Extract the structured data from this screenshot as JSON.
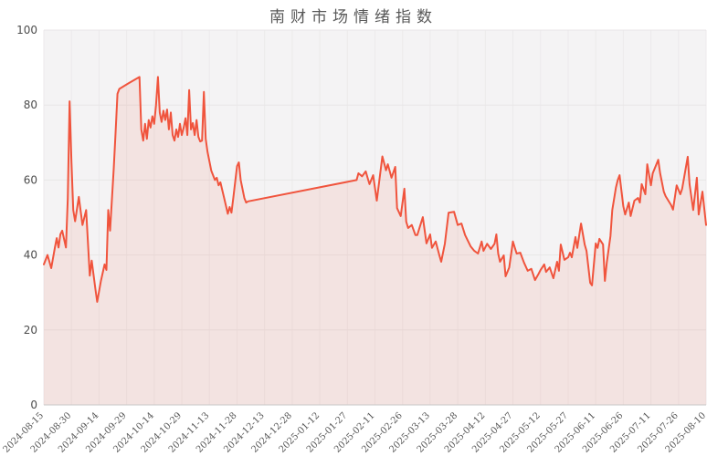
{
  "title": "南财市场情绪指数",
  "chart_data": {
    "type": "area",
    "title": "南财市场情绪指数",
    "xlabel": "",
    "ylabel": "",
    "ylim": [
      0,
      100
    ],
    "y_ticks": [
      0,
      20,
      40,
      60,
      80,
      100
    ],
    "x_range_days": [
      0,
      360
    ],
    "x_tick_step_days": 15,
    "x_tick_labels": [
      "2024-08-15",
      "2024-08-30",
      "2024-09-14",
      "2024-09-29",
      "2024-10-14",
      "2024-10-29",
      "2024-11-13",
      "2024-11-28",
      "2024-12-13",
      "2024-12-28",
      "2025-01-12",
      "2025-01-27",
      "2025-02-11",
      "2025-02-26",
      "2025-03-13",
      "2025-03-28",
      "2025-04-12",
      "2025-04-27",
      "2025-05-12",
      "2025-05-27",
      "2025-06-11",
      "2025-06-26",
      "2025-07-11",
      "2025-07-26",
      "2025-08-10"
    ],
    "grid": true,
    "legend": null,
    "colors": {
      "line": "#f0543d",
      "area_fill": "rgba(240,84,61,0.10)",
      "plot_bg": "#f4f3f4",
      "grid_h": "#e8e6e7",
      "grid_v": "#eceaeb",
      "axis_line": "#c9c9c9",
      "title_text": "#595959",
      "tick_text": "#555555"
    },
    "series": [
      {
        "name": "南财市场情绪指数",
        "x_unit": "days since 2024-08-15",
        "points": [
          [
            0,
            37.5
          ],
          [
            2,
            40
          ],
          [
            4,
            36.5
          ],
          [
            6,
            42
          ],
          [
            7,
            44.5
          ],
          [
            8,
            42
          ],
          [
            9,
            45.5
          ],
          [
            10,
            46.5
          ],
          [
            12,
            42
          ],
          [
            13,
            55
          ],
          [
            14,
            81
          ],
          [
            15,
            65
          ],
          [
            16,
            52
          ],
          [
            17,
            49
          ],
          [
            19,
            55.5
          ],
          [
            21,
            48
          ],
          [
            23,
            52
          ],
          [
            25,
            34.5
          ],
          [
            26,
            38.5
          ],
          [
            28,
            31
          ],
          [
            29,
            27.5
          ],
          [
            31,
            33
          ],
          [
            33,
            37.5
          ],
          [
            34,
            36
          ],
          [
            35,
            52
          ],
          [
            36,
            46.5
          ],
          [
            38,
            63
          ],
          [
            39,
            72.5
          ],
          [
            40,
            83
          ],
          [
            41,
            84.3
          ],
          [
            46,
            85.8
          ],
          [
            52,
            87.5
          ],
          [
            53,
            73.5
          ],
          [
            54,
            70.5
          ],
          [
            55,
            75
          ],
          [
            56,
            71
          ],
          [
            57,
            76
          ],
          [
            58,
            74
          ],
          [
            59,
            77
          ],
          [
            60,
            75
          ],
          [
            61,
            80
          ],
          [
            62,
            87.5
          ],
          [
            63,
            78
          ],
          [
            64,
            75.5
          ],
          [
            65,
            78.5
          ],
          [
            66,
            76
          ],
          [
            67,
            78.8
          ],
          [
            68,
            73.5
          ],
          [
            69,
            78
          ],
          [
            70,
            72
          ],
          [
            71,
            70.5
          ],
          [
            72,
            73.5
          ],
          [
            73,
            71.5
          ],
          [
            74,
            75
          ],
          [
            75,
            72
          ],
          [
            76,
            74
          ],
          [
            77,
            76.5
          ],
          [
            78,
            72
          ],
          [
            79,
            84
          ],
          [
            80,
            73.5
          ],
          [
            81,
            75.2
          ],
          [
            82,
            72
          ],
          [
            83,
            76
          ],
          [
            84,
            71.5
          ],
          [
            85,
            70.3
          ],
          [
            86,
            70.5
          ],
          [
            87,
            83.5
          ],
          [
            88,
            71
          ],
          [
            89,
            67.5
          ],
          [
            91,
            62.5
          ],
          [
            93,
            60
          ],
          [
            94,
            60.6
          ],
          [
            95,
            58.6
          ],
          [
            96,
            59.4
          ],
          [
            98,
            55.2
          ],
          [
            100,
            51
          ],
          [
            101,
            52.8
          ],
          [
            102,
            51.3
          ],
          [
            103,
            55.2
          ],
          [
            105,
            63.7
          ],
          [
            106,
            64.7
          ],
          [
            107,
            60
          ],
          [
            109,
            55.2
          ],
          [
            110,
            54
          ],
          [
            111,
            54.3
          ],
          [
            170,
            60
          ],
          [
            171,
            61.8
          ],
          [
            173,
            61
          ],
          [
            175,
            62.3
          ],
          [
            176,
            60.6
          ],
          [
            177,
            58.9
          ],
          [
            179,
            61.3
          ],
          [
            181,
            54.5
          ],
          [
            184,
            66.3
          ],
          [
            186,
            62.6
          ],
          [
            187,
            64.2
          ],
          [
            189,
            60.6
          ],
          [
            191,
            63.5
          ],
          [
            192,
            52.5
          ],
          [
            194,
            50.4
          ],
          [
            196,
            57.7
          ],
          [
            197,
            48.9
          ],
          [
            198,
            47.2
          ],
          [
            200,
            48
          ],
          [
            202,
            45.3
          ],
          [
            203,
            45.3
          ],
          [
            206,
            50.1
          ],
          [
            208,
            43.1
          ],
          [
            210,
            45.5
          ],
          [
            211,
            41.9
          ],
          [
            213,
            43.6
          ],
          [
            215,
            39.9
          ],
          [
            216,
            38.2
          ],
          [
            218,
            43
          ],
          [
            220,
            51.3
          ],
          [
            223,
            51.5
          ],
          [
            225,
            48
          ],
          [
            227,
            48.4
          ],
          [
            229,
            45.3
          ],
          [
            232,
            42.3
          ],
          [
            234,
            41.1
          ],
          [
            236,
            40.4
          ],
          [
            238,
            43.6
          ],
          [
            239,
            41.1
          ],
          [
            241,
            43
          ],
          [
            243,
            41.6
          ],
          [
            245,
            43
          ],
          [
            246,
            45.5
          ],
          [
            247,
            40.4
          ],
          [
            248,
            38.2
          ],
          [
            250,
            39.9
          ],
          [
            251,
            34.3
          ],
          [
            253,
            36.7
          ],
          [
            255,
            43.6
          ],
          [
            257,
            40.4
          ],
          [
            259,
            40.6
          ],
          [
            261,
            38
          ],
          [
            263,
            35.8
          ],
          [
            265,
            36.3
          ],
          [
            267,
            33.3
          ],
          [
            269,
            35
          ],
          [
            270,
            36
          ],
          [
            272,
            37.5
          ],
          [
            273,
            35.5
          ],
          [
            275,
            36.7
          ],
          [
            277,
            33.8
          ],
          [
            279,
            38.2
          ],
          [
            280,
            35.8
          ],
          [
            281,
            42.8
          ],
          [
            283,
            38.7
          ],
          [
            285,
            39.4
          ],
          [
            286,
            40.6
          ],
          [
            287,
            39.4
          ],
          [
            289,
            44.8
          ],
          [
            290,
            41.9
          ],
          [
            292,
            48.4
          ],
          [
            294,
            42.8
          ],
          [
            295,
            41.1
          ],
          [
            297,
            32.6
          ],
          [
            298,
            31.9
          ],
          [
            300,
            43.1
          ],
          [
            301,
            41.9
          ],
          [
            302,
            44.3
          ],
          [
            304,
            42.8
          ],
          [
            305,
            33.1
          ],
          [
            306,
            38
          ],
          [
            308,
            45
          ],
          [
            309,
            52
          ],
          [
            311,
            58
          ],
          [
            312,
            60
          ],
          [
            313,
            61.3
          ],
          [
            315,
            53
          ],
          [
            316,
            50.8
          ],
          [
            318,
            54
          ],
          [
            319,
            50.4
          ],
          [
            321,
            54.5
          ],
          [
            323,
            55.2
          ],
          [
            324,
            54
          ],
          [
            325,
            58.9
          ],
          [
            327,
            56.2
          ],
          [
            328,
            64.2
          ],
          [
            330,
            58.6
          ],
          [
            331,
            61.8
          ],
          [
            334,
            65.4
          ],
          [
            335,
            61.8
          ],
          [
            337,
            56.9
          ],
          [
            338,
            55.7
          ],
          [
            341,
            53.3
          ],
          [
            342,
            52.1
          ],
          [
            344,
            58.6
          ],
          [
            346,
            56.2
          ],
          [
            347,
            57.7
          ],
          [
            350,
            66.2
          ],
          [
            351,
            58.9
          ],
          [
            353,
            52
          ],
          [
            355,
            60.6
          ],
          [
            356,
            50.8
          ],
          [
            358,
            56.9
          ],
          [
            360,
            48
          ]
        ]
      }
    ]
  }
}
